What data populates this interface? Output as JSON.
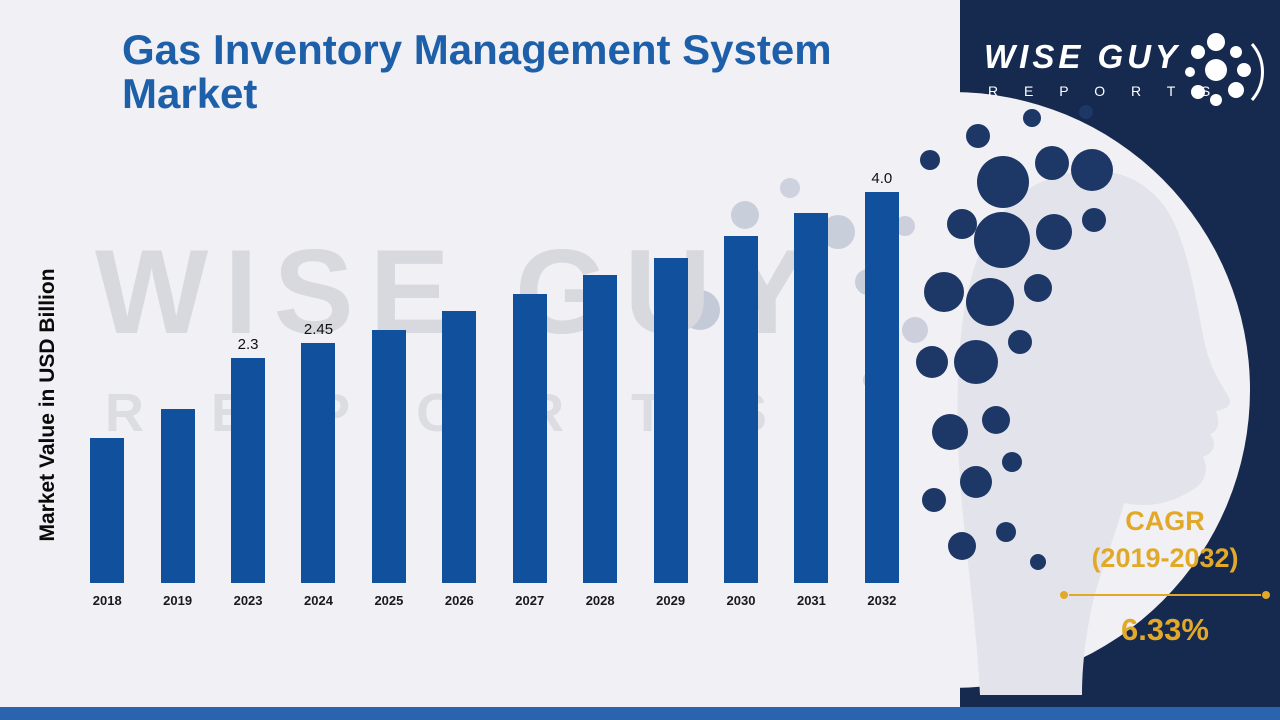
{
  "title": {
    "line1": "Gas Inventory Management System",
    "line2": "Market"
  },
  "chart_data": {
    "type": "bar",
    "title": "Gas Inventory Management System Market",
    "xlabel": "",
    "ylabel": "Market Value in USD Billion",
    "categories": [
      "2018",
      "2019",
      "2023",
      "2024",
      "2025",
      "2026",
      "2027",
      "2028",
      "2029",
      "2030",
      "2031",
      "2032"
    ],
    "values": [
      1.48,
      1.78,
      2.3,
      2.45,
      2.58,
      2.78,
      2.95,
      3.15,
      3.32,
      3.55,
      3.78,
      4.0
    ],
    "bar_value_labels": [
      "",
      "",
      "2.3",
      "2.45",
      "",
      "",
      "",
      "",
      "",
      "",
      "",
      "4.0"
    ],
    "ylim": [
      0,
      4.7
    ],
    "grid": false,
    "legend": false,
    "bar_color": "#11509d"
  },
  "watermark": {
    "line1": "WISE GUY",
    "line2": "R E P O R T S"
  },
  "brand": {
    "logo_main": "WISE GUY",
    "logo_sub": "R E P O R T S"
  },
  "cagr": {
    "label": "CAGR",
    "period": "(2019-2032)",
    "value": "6.33%"
  },
  "colors": {
    "title_blue": "#1d5fa9",
    "bar_blue": "#11509d",
    "panel_navy": "#16294f",
    "accent_gold": "#e2a928",
    "bottom_strip_blue": "#2a63ae",
    "watermark_gray": "#d8d9df",
    "background": "#f1f0f4"
  }
}
